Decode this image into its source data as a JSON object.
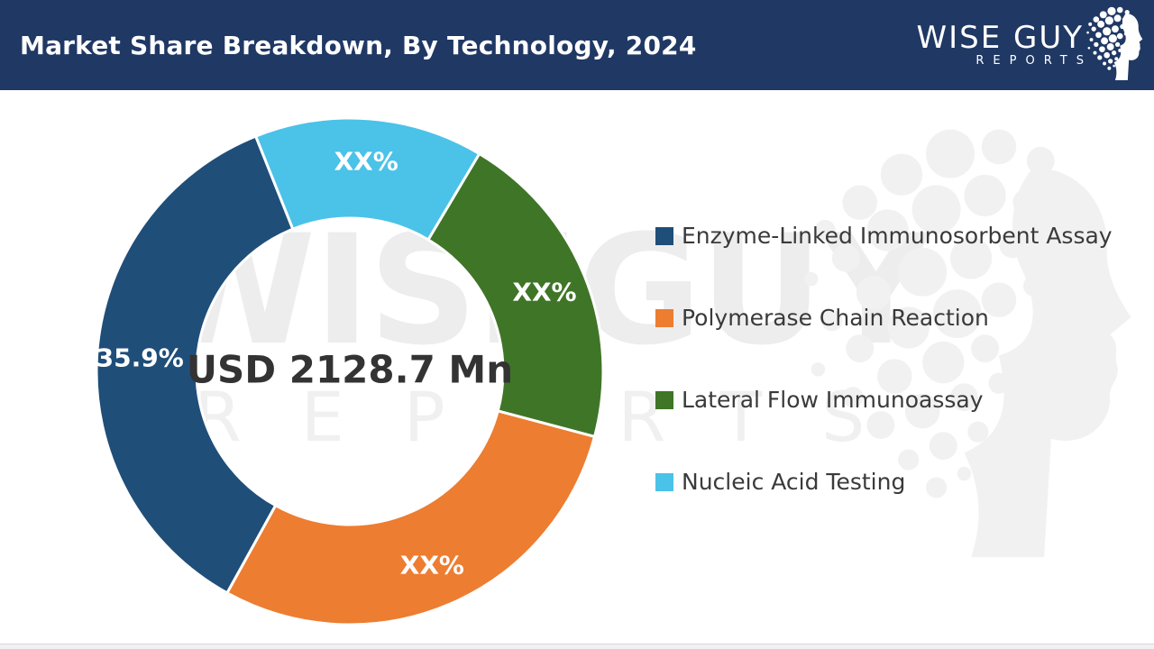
{
  "header": {
    "title": "Market Share Breakdown, By Technology, 2024",
    "logo": {
      "line1": "WISE GUY",
      "line2": "REPORTS"
    }
  },
  "watermark": {
    "line1": "WISEGUY",
    "line2": "REPORTS"
  },
  "chart_data": {
    "type": "pie",
    "subtype": "donut",
    "title": "Market Share Breakdown, By Technology, 2024",
    "center_label": "USD 2128.7 Mn",
    "start_angle_deg": 111.8,
    "direction": "counterclockwise",
    "inner_radius_ratio": 0.605,
    "legend_position": "right",
    "slices": [
      {
        "label": "Enzyme-Linked Immunosorbent Assay",
        "display_pct": "35.9%",
        "value_pct_est": 35.9,
        "color": "#1F4E79"
      },
      {
        "label": "Polymerase Chain Reaction",
        "display_pct": "XX%",
        "value_pct_est": 28.9,
        "color": "#ED7D31"
      },
      {
        "label": "Lateral Flow Immunoassay",
        "display_pct": "XX%",
        "value_pct_est": 20.6,
        "color": "#3F7527"
      },
      {
        "label": "Nucleic Acid Testing",
        "display_pct": "XX%",
        "value_pct_est": 14.6,
        "color": "#4BC2E8"
      }
    ]
  },
  "colors": {
    "header_bg": "#203864",
    "center_text": "#333333",
    "legend_text": "#3a3a3a",
    "watermark": "#ededed"
  }
}
